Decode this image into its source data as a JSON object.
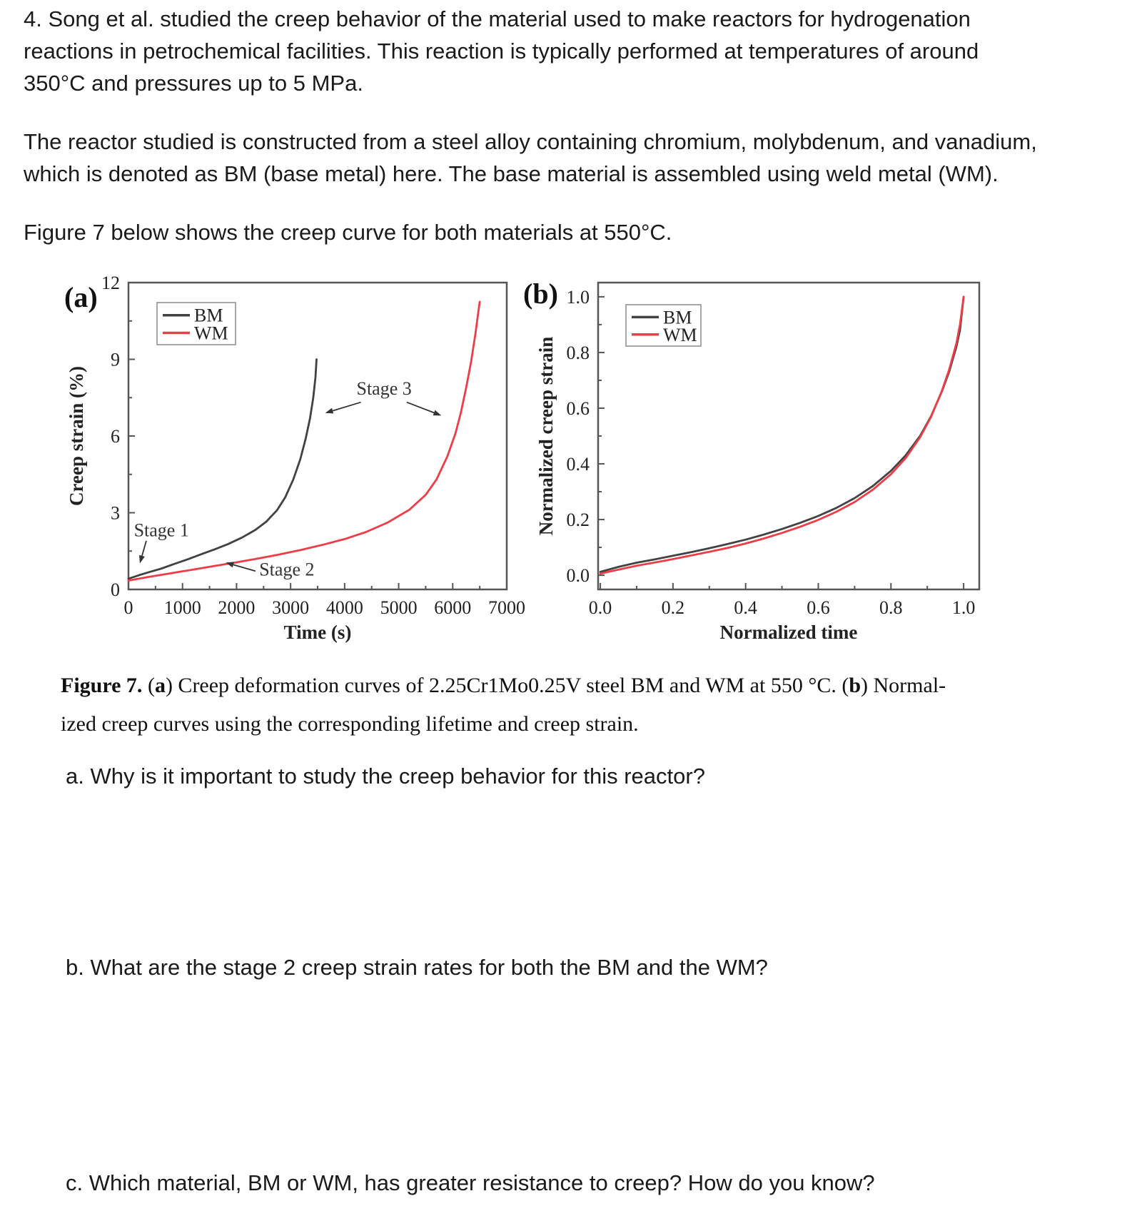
{
  "intro": {
    "p1_lines": [
      "4. Song et al. studied the creep behavior of the material used to make reactors for hydrogenation",
      "reactions in petrochemical facilities. This reaction is typically performed at temperatures of around",
      "350°C and pressures up to 5 MPa."
    ],
    "p2_lines": [
      "The reactor studied is constructed from a steel alloy containing chromium, molybdenum, and vanadium,",
      "which is denoted as BM (base metal) here. The base material is assembled using weld metal (WM)."
    ],
    "p3_line": "Figure 7 below shows the creep curve for both materials at 550°C."
  },
  "colors": {
    "bm": "#424242",
    "wm": "#ee3d46",
    "ink": "#565656",
    "text": "#222222"
  },
  "chart_data": [
    {
      "id": "a",
      "type": "line",
      "panel_label": "(a)",
      "xlabel": "Time (s)",
      "ylabel": "Creep strain (%)",
      "xlim": [
        0,
        7000
      ],
      "ylim": [
        0,
        12
      ],
      "xticks": [
        0,
        1000,
        2000,
        3000,
        4000,
        5000,
        6000,
        7000
      ],
      "xtick_labels": [
        "0",
        "1000",
        "2000",
        "3000",
        "4000",
        "5000",
        "6000",
        "7000"
      ],
      "yticks": [
        0,
        3,
        6,
        9,
        12
      ],
      "ytick_labels": [
        "0",
        "3",
        "6",
        "9",
        "12"
      ],
      "x_minor_step": 500,
      "y_minor_step": 1.5,
      "grid": false,
      "legend": {
        "position": "top-left-inset",
        "entries": [
          {
            "label": "BM",
            "color": "#424242"
          },
          {
            "label": "WM",
            "color": "#ee3d46"
          }
        ]
      },
      "series": [
        {
          "name": "BM",
          "color": "#424242",
          "points": [
            [
              0,
              0.42
            ],
            [
              200,
              0.56
            ],
            [
              400,
              0.69
            ],
            [
              600,
              0.81
            ],
            [
              850,
              1.0
            ],
            [
              1100,
              1.18
            ],
            [
              1350,
              1.38
            ],
            [
              1600,
              1.57
            ],
            [
              1850,
              1.78
            ],
            [
              2100,
              2.03
            ],
            [
              2350,
              2.33
            ],
            [
              2550,
              2.65
            ],
            [
              2750,
              3.1
            ],
            [
              2900,
              3.6
            ],
            [
              3050,
              4.3
            ],
            [
              3180,
              5.1
            ],
            [
              3280,
              5.9
            ],
            [
              3360,
              6.7
            ],
            [
              3420,
              7.5
            ],
            [
              3460,
              8.3
            ],
            [
              3480,
              9.0
            ]
          ]
        },
        {
          "name": "WM",
          "color": "#ee3d46",
          "points": [
            [
              0,
              0.35
            ],
            [
              400,
              0.5
            ],
            [
              800,
              0.64
            ],
            [
              1200,
              0.78
            ],
            [
              1600,
              0.92
            ],
            [
              2000,
              1.06
            ],
            [
              2400,
              1.21
            ],
            [
              2800,
              1.37
            ],
            [
              3200,
              1.55
            ],
            [
              3600,
              1.75
            ],
            [
              4000,
              1.97
            ],
            [
              4400,
              2.25
            ],
            [
              4800,
              2.62
            ],
            [
              5200,
              3.12
            ],
            [
              5500,
              3.7
            ],
            [
              5700,
              4.3
            ],
            [
              5900,
              5.2
            ],
            [
              6050,
              6.1
            ],
            [
              6150,
              6.9
            ],
            [
              6250,
              7.9
            ],
            [
              6340,
              8.9
            ],
            [
              6420,
              10.0
            ],
            [
              6470,
              10.8
            ],
            [
              6500,
              11.25
            ]
          ]
        }
      ],
      "annotations": [
        {
          "text": "Stage 1",
          "x": 100,
          "y": 2.08,
          "anchor": "start",
          "arrows": [
            [
              330,
              1.9,
              210,
              1.02
            ]
          ]
        },
        {
          "text": "Stage 2",
          "x": 2420,
          "y": 0.55,
          "anchor": "start",
          "arrows": [
            [
              2350,
              0.72,
              1800,
              1.05
            ]
          ]
        },
        {
          "text": "Stage 3",
          "x": 4730,
          "y": 7.62,
          "anchor": "middle",
          "arrows": [
            [
              4300,
              7.32,
              3640,
              6.9
            ],
            [
              5150,
              7.32,
              5790,
              6.8
            ]
          ]
        }
      ]
    },
    {
      "id": "b",
      "type": "line",
      "panel_label": "(b)",
      "xlabel": "Normalized time",
      "ylabel": "Normalized creep strain",
      "xlim": [
        0,
        1
      ],
      "ylim": [
        0,
        1
      ],
      "xticks": [
        0,
        0.2,
        0.4,
        0.6,
        0.8,
        1.0
      ],
      "xtick_labels": [
        "0.0",
        "0.2",
        "0.4",
        "0.6",
        "0.8",
        "1.0"
      ],
      "yticks": [
        0,
        0.2,
        0.4,
        0.6,
        0.8,
        1.0
      ],
      "ytick_labels": [
        "0.0",
        "0.2",
        "0.4",
        "0.6",
        "0.8",
        "1.0"
      ],
      "x_minor_step": 0.1,
      "y_minor_step": 0.1,
      "grid": false,
      "legend": {
        "position": "top-left-inset",
        "entries": [
          {
            "label": "BM",
            "color": "#424242"
          },
          {
            "label": "WM",
            "color": "#ee3d46"
          }
        ]
      },
      "series": [
        {
          "name": "BM",
          "color": "#424242",
          "points": [
            [
              0,
              0.012
            ],
            [
              0.05,
              0.03
            ],
            [
              0.1,
              0.045
            ],
            [
              0.15,
              0.057
            ],
            [
              0.2,
              0.07
            ],
            [
              0.25,
              0.083
            ],
            [
              0.3,
              0.097
            ],
            [
              0.35,
              0.112
            ],
            [
              0.4,
              0.128
            ],
            [
              0.45,
              0.146
            ],
            [
              0.5,
              0.166
            ],
            [
              0.55,
              0.188
            ],
            [
              0.6,
              0.213
            ],
            [
              0.65,
              0.242
            ],
            [
              0.7,
              0.277
            ],
            [
              0.75,
              0.32
            ],
            [
              0.8,
              0.375
            ],
            [
              0.84,
              0.43
            ],
            [
              0.88,
              0.5
            ],
            [
              0.91,
              0.57
            ],
            [
              0.94,
              0.66
            ],
            [
              0.96,
              0.73
            ],
            [
              0.98,
              0.82
            ],
            [
              0.99,
              0.88
            ],
            [
              1.0,
              1.0
            ]
          ]
        },
        {
          "name": "WM",
          "color": "#ee3d46",
          "points": [
            [
              0,
              0.006
            ],
            [
              0.05,
              0.02
            ],
            [
              0.1,
              0.034
            ],
            [
              0.15,
              0.046
            ],
            [
              0.2,
              0.058
            ],
            [
              0.25,
              0.071
            ],
            [
              0.3,
              0.084
            ],
            [
              0.35,
              0.098
            ],
            [
              0.4,
              0.114
            ],
            [
              0.45,
              0.132
            ],
            [
              0.5,
              0.152
            ],
            [
              0.55,
              0.174
            ],
            [
              0.6,
              0.199
            ],
            [
              0.65,
              0.228
            ],
            [
              0.7,
              0.263
            ],
            [
              0.75,
              0.307
            ],
            [
              0.8,
              0.363
            ],
            [
              0.84,
              0.42
            ],
            [
              0.88,
              0.495
            ],
            [
              0.91,
              0.568
            ],
            [
              0.94,
              0.662
            ],
            [
              0.96,
              0.737
            ],
            [
              0.98,
              0.832
            ],
            [
              0.99,
              0.9
            ],
            [
              1.0,
              1.0
            ]
          ]
        }
      ],
      "annotations": []
    }
  ],
  "caption": {
    "bold_figure": "Figure 7.",
    "seg1": " (",
    "bold_a": "a",
    "seg2": ") Creep deformation curves of 2.25Cr1Mo0.25V steel BM and WM at 550 °C. (",
    "bold_b": "b",
    "seg3": ") Normal-",
    "line2": "ized creep curves using the corresponding lifetime and creep strain."
  },
  "questions": {
    "a": "a. Why is it important to study the creep behavior for this reactor?",
    "b": "b. What are the stage 2 creep strain rates for both the BM and the WM?",
    "c": "c. Which material, BM or WM, has greater resistance to creep? How do you know?"
  }
}
